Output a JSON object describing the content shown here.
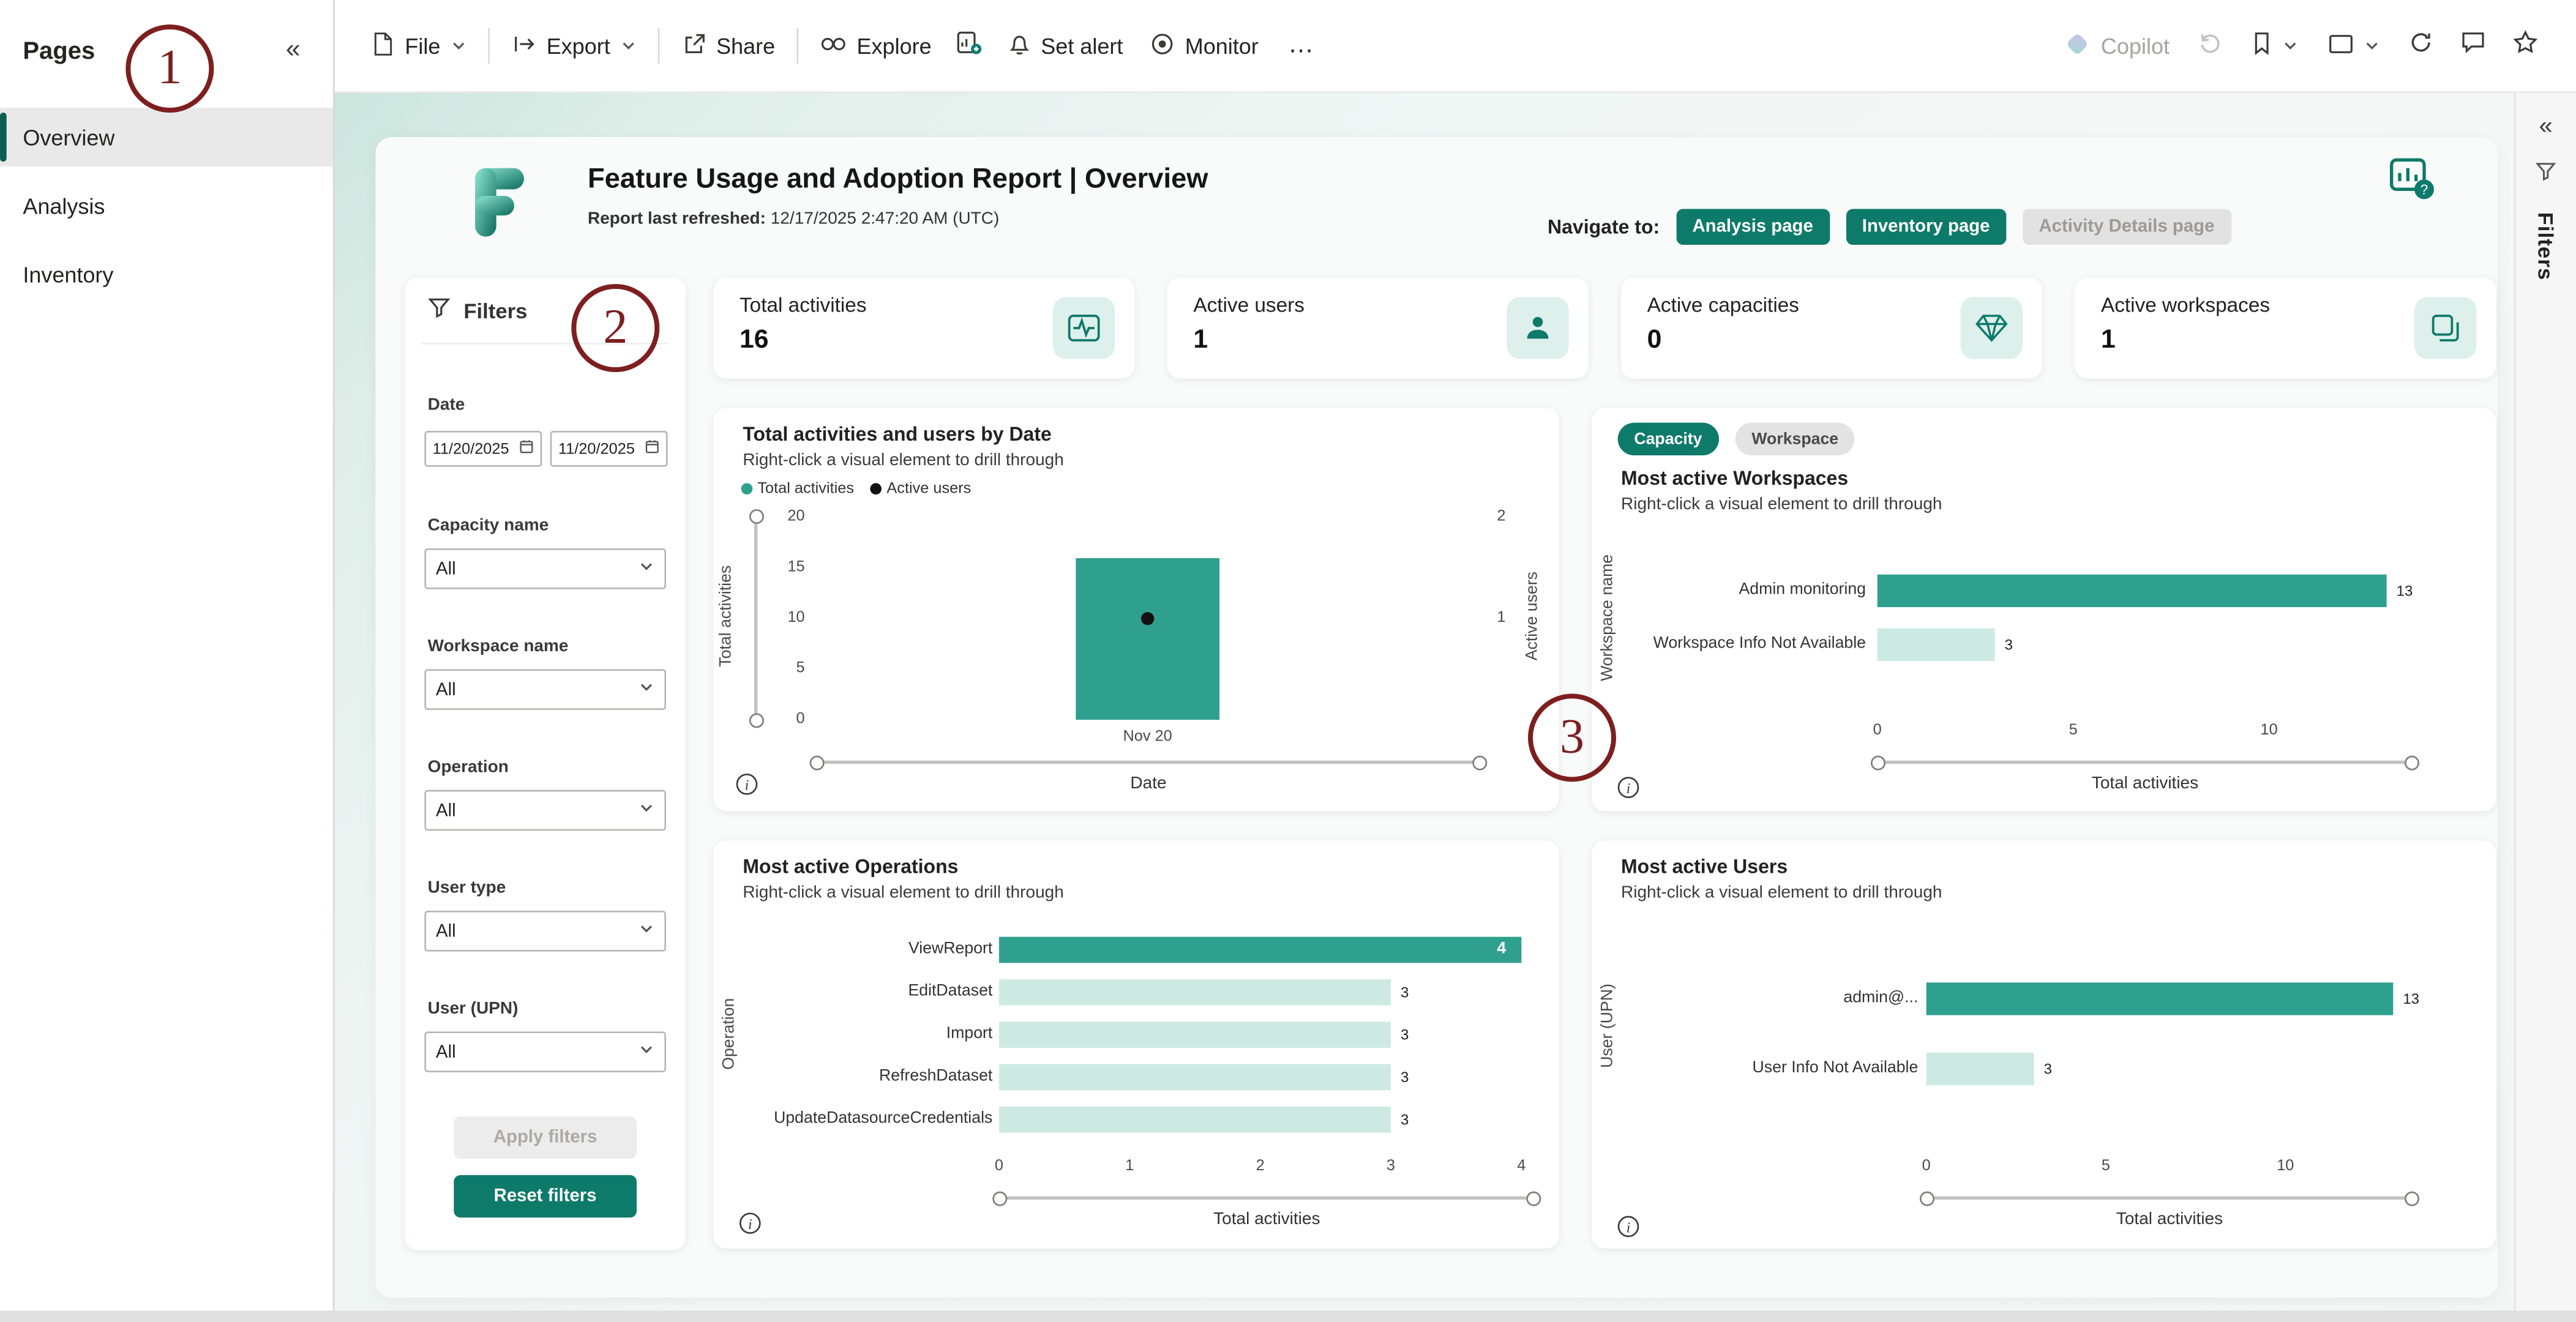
{
  "annotations": {
    "step1": "1",
    "step2": "2",
    "step3": "3"
  },
  "pages_panel": {
    "title": "Pages",
    "collapse_icon": "«",
    "items": [
      {
        "label": "Overview",
        "selected": true
      },
      {
        "label": "Analysis",
        "selected": false
      },
      {
        "label": "Inventory",
        "selected": false
      }
    ]
  },
  "toolbar": {
    "file": "File",
    "export": "Export",
    "share": "Share",
    "explore": "Explore",
    "set_alert": "Set alert",
    "monitor": "Monitor",
    "overflow": "…",
    "copilot": "Copilot"
  },
  "right_rail": {
    "collapse_icon": "«",
    "title": "Filters"
  },
  "report_header": {
    "title": "Feature Usage and Adoption Report | Overview",
    "refreshed_label": "Report last refreshed:",
    "refreshed_value": " 12/17/2025 2:47:20 AM (UTC)",
    "navigate_label": "Navigate to:",
    "nav_buttons": [
      {
        "label": "Analysis page",
        "enabled": true
      },
      {
        "label": "Inventory page",
        "enabled": true
      },
      {
        "label": "Activity Details page",
        "enabled": false
      }
    ]
  },
  "filter_pane": {
    "title": "Filters",
    "date_label": "Date",
    "date_from": "11/20/2025",
    "date_to": "11/20/2025",
    "dropdowns": [
      {
        "label": "Capacity name",
        "value": "All"
      },
      {
        "label": "Workspace name",
        "value": "All"
      },
      {
        "label": "Operation",
        "value": "All"
      },
      {
        "label": "User type",
        "value": "All"
      },
      {
        "label": "User (UPN)",
        "value": "All"
      }
    ],
    "apply_label": "Apply filters",
    "reset_label": "Reset filters"
  },
  "kpi_cards": [
    {
      "label": "Total activities",
      "value": "16",
      "icon": "pulse-icon"
    },
    {
      "label": "Active users",
      "value": "1",
      "icon": "person-icon"
    },
    {
      "label": "Active capacities",
      "value": "0",
      "icon": "gem-icon"
    },
    {
      "label": "Active workspaces",
      "value": "1",
      "icon": "layers-icon"
    }
  ],
  "colors": {
    "accent_teal": "#0E7A6A",
    "bar_dark": "#2FA08E",
    "bar_light": "#CDEAE2",
    "annotation_red": "#7D1F1F"
  },
  "chart_data": [
    {
      "type": "column",
      "title": "Total activities and users by Date",
      "subtitle": "Right-click a visual element to drill through",
      "categories": [
        "Nov 20"
      ],
      "series": [
        {
          "name": "Total activities",
          "type": "column",
          "values": [
            16
          ]
        },
        {
          "name": "Active users",
          "type": "point",
          "values": [
            1
          ]
        }
      ],
      "left_axis": {
        "label": "Total activities",
        "ticks": [
          0,
          5,
          10,
          15,
          20
        ],
        "max": 20
      },
      "right_axis": {
        "label": "Active users",
        "ticks": [
          1,
          2
        ],
        "max": 2
      },
      "xlabel": "Date"
    },
    {
      "type": "bar",
      "toggle": {
        "options": [
          "Capacity",
          "Workspace"
        ],
        "selected": "Capacity"
      },
      "title": "Most active Workspaces",
      "subtitle": "Right-click a visual element to drill through",
      "categories": [
        "Admin monitoring",
        "Workspace Info Not Available"
      ],
      "values": [
        13,
        3
      ],
      "xticks": [
        0,
        5,
        10
      ],
      "xlabel": "Total activities",
      "ylabel": "Workspace name"
    },
    {
      "type": "bar",
      "title": "Most active Operations",
      "subtitle": "Right-click a visual element to drill through",
      "categories": [
        "ViewReport",
        "EditDataset",
        "Import",
        "RefreshDataset",
        "UpdateDatasourceCredentials"
      ],
      "values": [
        4,
        3,
        3,
        3,
        3
      ],
      "xticks": [
        0,
        1,
        2,
        3,
        4
      ],
      "xlabel": "Total activities",
      "ylabel": "Operation"
    },
    {
      "type": "bar",
      "title": "Most active Users",
      "subtitle": "Right-click a visual element to drill through",
      "categories": [
        "admin@...",
        "User Info Not Available"
      ],
      "values": [
        13,
        3
      ],
      "xticks": [
        0,
        5,
        10
      ],
      "xlabel": "Total activities",
      "ylabel": "User (UPN)"
    }
  ]
}
